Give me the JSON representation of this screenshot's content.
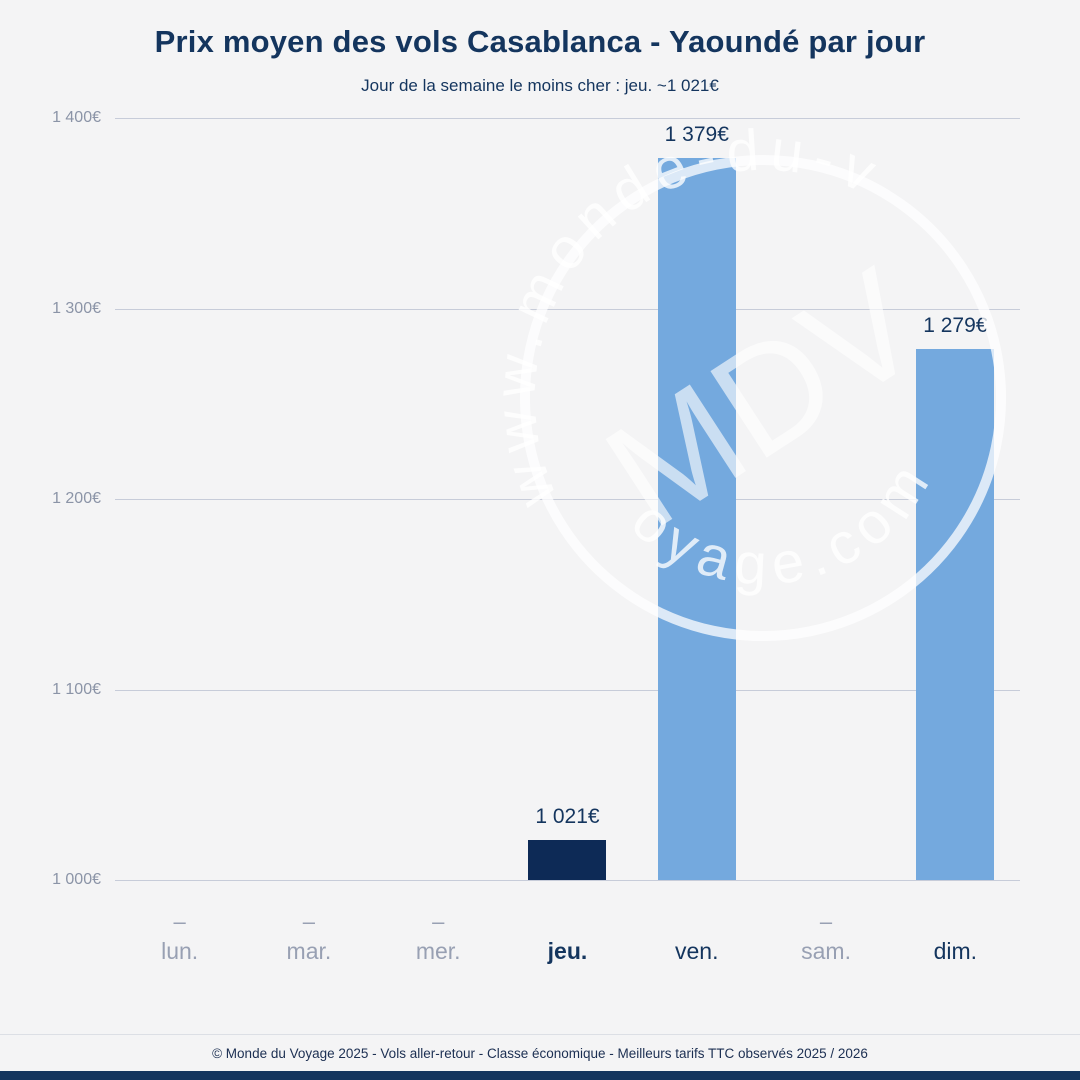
{
  "title": "Prix moyen des vols Casablanca - Yaoundé par jour",
  "subtitle": "Jour de la semaine le moins cher : jeu. ~1 021€",
  "footer": {
    "text": "© Monde du Voyage 2025 - Vols aller-retour - Classe économique - Meilleurs tarifs TTC observés 2025 / 2026"
  },
  "watermark": {
    "arc_top": "www.monde-du-v",
    "arc_bottom": "oyage.com",
    "badge": "MDV"
  },
  "colors": {
    "background": "#f4f4f5",
    "title": "#14355e",
    "bar_light": "#74a9de",
    "bar_dark": "#0d2a56",
    "gridline": "#c7ccd9",
    "ytick": "#8b94a7",
    "xlabel_gray": "#98a0b3",
    "xlabel_navy": "#14355e",
    "footer_bar": "#14355e"
  },
  "chart_data": {
    "type": "bar",
    "categories": [
      "lun.",
      "mar.",
      "mer.",
      "jeu.",
      "ven.",
      "sam.",
      "dim."
    ],
    "values": [
      null,
      null,
      null,
      1021,
      1379,
      null,
      1279
    ],
    "value_labels": [
      "",
      "",
      "",
      "1 021€",
      "1 379€",
      "",
      "1 279€"
    ],
    "highlight_index": 3,
    "empty_marker": "–",
    "ylim": [
      1000,
      1400
    ],
    "yticks": [
      1000,
      1100,
      1200,
      1300,
      1400
    ],
    "ytick_labels": [
      "1 000€",
      "1 100€",
      "1 200€",
      "1 300€",
      "1 400€"
    ],
    "xlabel": "",
    "ylabel": "",
    "grid": true,
    "legend": "none",
    "title": "Prix moyen des vols Casablanca - Yaoundé par jour",
    "subtitle": "Jour de la semaine le moins cher : jeu. ~1 021€"
  }
}
